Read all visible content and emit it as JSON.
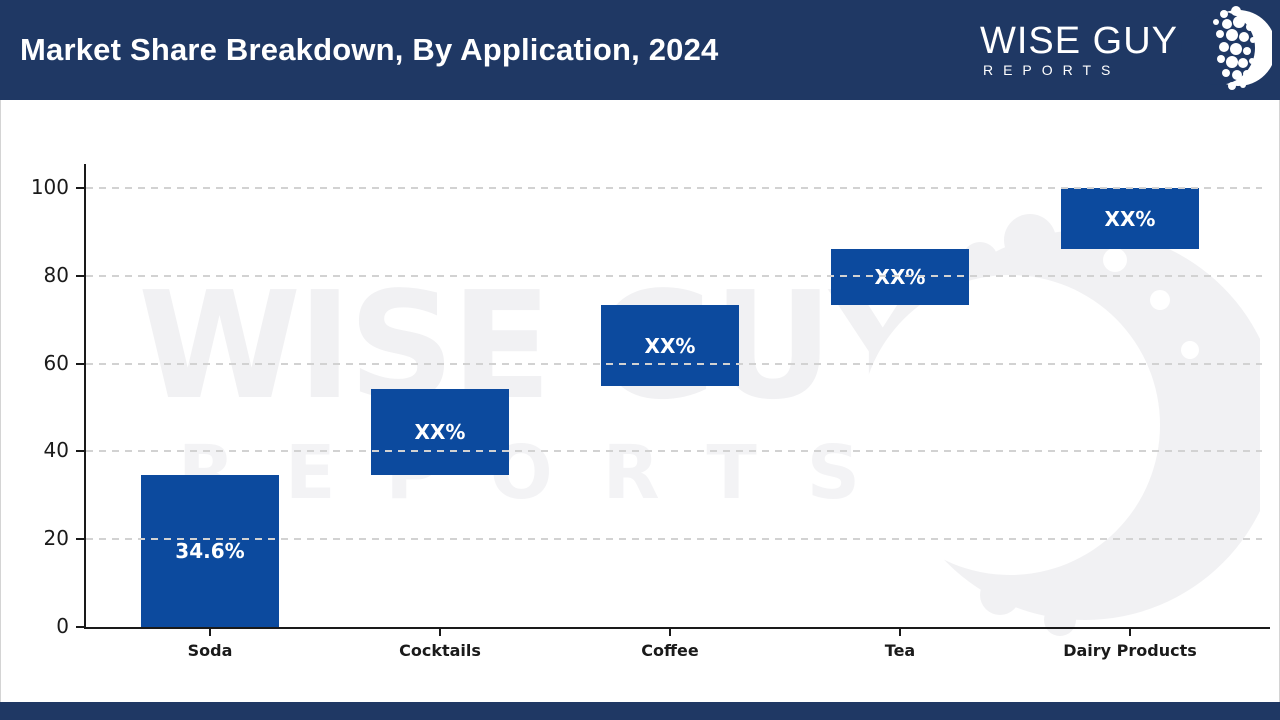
{
  "header": {
    "title": "Market Share Breakdown, By Application, 2024",
    "logo": {
      "line1": "WISE GUY",
      "line2": "REPORTS"
    }
  },
  "watermark": {
    "line1": "WISE GUY",
    "line2": "REPORTS"
  },
  "colors": {
    "header_bg": "#1f3864",
    "footer_bg": "#1f3864",
    "bar": "#0c4a9e",
    "bar_label": "#ffffff",
    "grid": "#d2d2d2",
    "axis": "#1a1a1a",
    "tick_label": "#1a1a1a",
    "watermark": "#f1f1f3"
  },
  "chart_data": {
    "type": "bar",
    "subtype": "waterfall",
    "title": "Market Share Breakdown, By Application, 2024",
    "categories": [
      "Soda",
      "Cocktails",
      "Coffee",
      "Tea",
      "Dairy Products"
    ],
    "bars": [
      {
        "category": "Soda",
        "start": 0,
        "end": 34.6,
        "label": "34.6%"
      },
      {
        "category": "Cocktails",
        "start": 34.6,
        "end": 54.2,
        "label": "XX%"
      },
      {
        "category": "Coffee",
        "start": 54.8,
        "end": 73.3,
        "label": "XX%"
      },
      {
        "category": "Tea",
        "start": 73.3,
        "end": 86,
        "label": "XX%"
      },
      {
        "category": "Dairy Products",
        "start": 86,
        "end": 100,
        "label": "XX%"
      }
    ],
    "yticks": [
      0,
      20,
      40,
      60,
      80,
      100
    ],
    "ylim": [
      0,
      105
    ],
    "xlabel": "",
    "ylabel": "",
    "grid": "horizontal dashed, drawn above bars",
    "legend": "none"
  }
}
